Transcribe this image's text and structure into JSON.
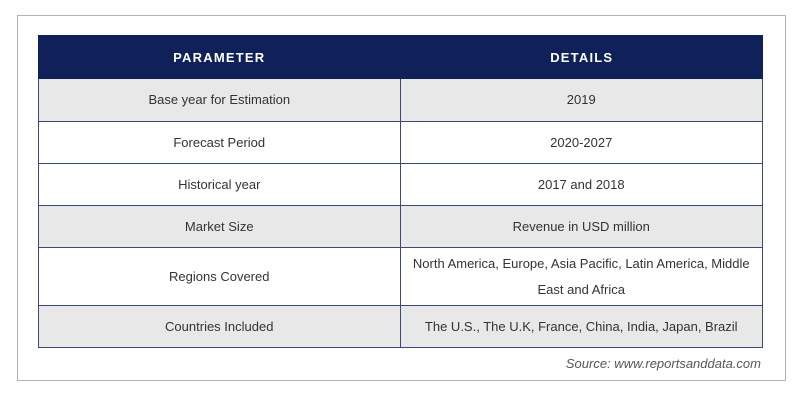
{
  "table": {
    "columns": {
      "parameter": "PARAMETER",
      "details": "DETAILS"
    },
    "rows": [
      {
        "parameter": "Base year for Estimation",
        "details": "2019"
      },
      {
        "parameter": "Forecast Period",
        "details": "2020-2027"
      },
      {
        "parameter": "Historical year",
        "details": "2017 and 2018"
      },
      {
        "parameter": "Market Size",
        "details": "Revenue in USD million"
      },
      {
        "parameter": "Regions Covered",
        "details": "North America, Europe, Asia Pacific, Latin America, Middle East and Africa"
      },
      {
        "parameter": "Countries Included",
        "details": "The U.S., The U.K, France, China, India, Japan, Brazil"
      }
    ]
  },
  "source": "Source: www.reportsanddata.com",
  "colors": {
    "header_bg": "#0f2158",
    "header_text": "#ffffff",
    "table_border": "#3a4a78",
    "shaded_row_bg": "#e8e8e8",
    "cell_text": "#333333",
    "frame_border": "#b4b4b4",
    "source_text": "#55565a"
  }
}
